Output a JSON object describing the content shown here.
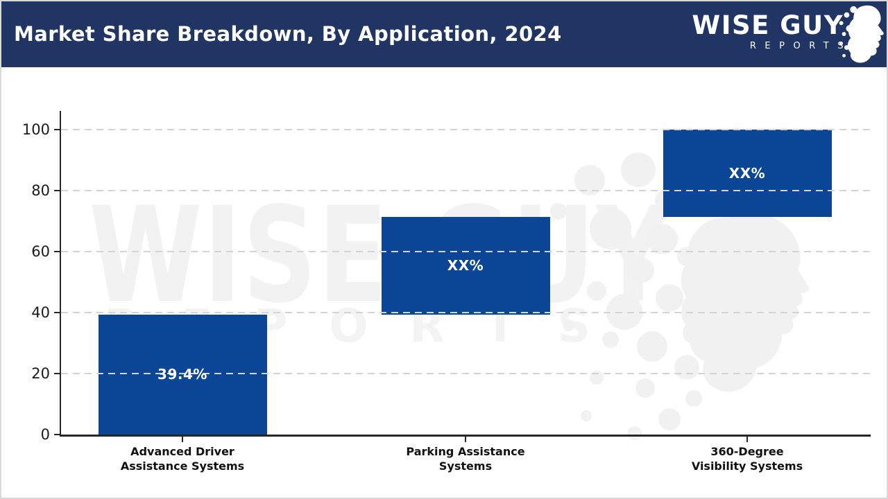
{
  "header": {
    "title": "Market Share Breakdown, By Application, 2024"
  },
  "logo": {
    "wordmark": "WISE GUY",
    "sub": "REPORTS",
    "face_icon": "dotted-face-profile-icon"
  },
  "watermark": {
    "wordmark": "WISE GUY",
    "sub": "REPORTS",
    "face_icon": "dotted-face-profile-icon"
  },
  "colors": {
    "header_bg": "#213564",
    "bar_fill": "#0b4596",
    "bar_label": "#ffffff",
    "gridline": "#d4d4d4",
    "axis": "#262626",
    "tick_label": "#1a1a1a",
    "watermark": "#f2f2f2",
    "page_border": "#d9d9d9"
  },
  "chart_data": {
    "type": "bar",
    "subtype": "waterfall",
    "title": "Market Share Breakdown, By Application, 2024",
    "xlabel": "",
    "ylabel": "",
    "categories": [
      [
        "Advanced Driver",
        "Assistance Systems"
      ],
      [
        "Parking Assistance",
        "Systems"
      ],
      [
        "360-Degree",
        "Visibility Systems"
      ]
    ],
    "segments": [
      {
        "start": 0,
        "end": 39.4,
        "label": "39.4%"
      },
      {
        "start": 39.4,
        "end": 71.4,
        "label": "XX%"
      },
      {
        "start": 71.4,
        "end": 100,
        "label": "XX%"
      }
    ],
    "yticks": [
      0,
      20,
      40,
      60,
      80,
      100
    ],
    "ylim": [
      0,
      106
    ],
    "grid": true,
    "grid_style": "dashed",
    "legend": "none"
  }
}
